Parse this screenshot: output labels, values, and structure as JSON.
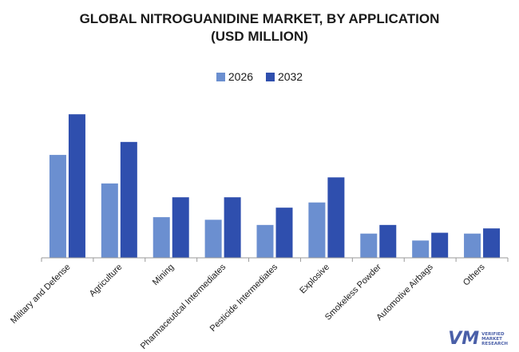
{
  "chart_data": {
    "type": "bar",
    "title_lines": [
      "GLOBAL NITROGUANIDINE MARKET, BY APPLICATION",
      "(USD MILLION)"
    ],
    "xlabel": "",
    "ylabel": "",
    "categories": [
      "Military and Defense",
      "Agriculture",
      "Mining",
      "Pharmaceutical Intermediates",
      "Pesticide Intermediates",
      "Explosive",
      "Smokeless Powder",
      "Automotive Airbags",
      "Others"
    ],
    "series": [
      {
        "name": "2026",
        "color": "#6b8fd0",
        "values": [
          119,
          86,
          47,
          44,
          38,
          64,
          28,
          20,
          28
        ]
      },
      {
        "name": "2032",
        "color": "#2f4fae",
        "values": [
          166,
          134,
          70,
          70,
          58,
          93,
          38,
          29,
          34
        ]
      }
    ],
    "ylim": [
      0,
      180
    ],
    "grid": false,
    "legend_position": "top-center"
  },
  "brand": {
    "lines": [
      "VERIFIED",
      "MARKET",
      "RESEARCH"
    ]
  }
}
